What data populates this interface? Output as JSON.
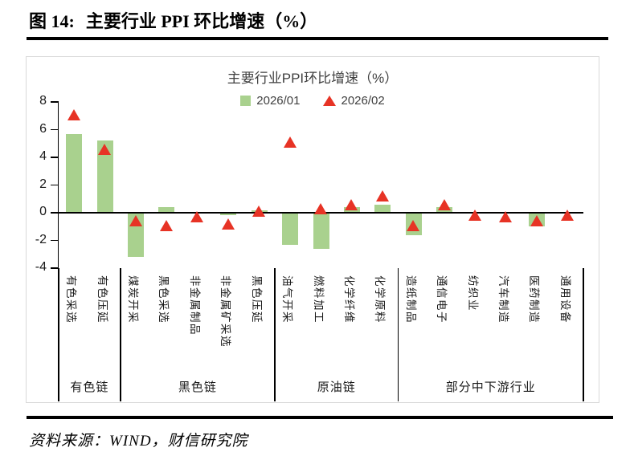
{
  "page": {
    "figure_label": "图 14:",
    "figure_title": "主要行业 PPI 环比增速（%）",
    "source": "资料来源：WIND，财信研究院"
  },
  "chart_data": {
    "type": "bar",
    "title": "主要行业PPI环比增速（%）",
    "legend_position": "top-center",
    "grid": false,
    "ylim": [
      -4,
      8
    ],
    "yticks": [
      8,
      6,
      4,
      2,
      0,
      -2,
      -4
    ],
    "categories": [
      "有色采选",
      "有色压延",
      "煤炭开采",
      "黑色采选",
      "非金属制品",
      "非金属矿采选",
      "黑色压延",
      "油气开采",
      "燃料加工",
      "化学纤维",
      "化学原料",
      "造纸制品",
      "通信电子",
      "纺织业",
      "汽车制造",
      "医药制造",
      "通用设备"
    ],
    "groups": [
      {
        "label": "有色链",
        "span": 2
      },
      {
        "label": "黑色链",
        "span": 5
      },
      {
        "label": "原油链",
        "span": 4
      },
      {
        "label": "部分中下游行业",
        "span": 6
      }
    ],
    "series": [
      {
        "name": "2026/01",
        "type": "bar",
        "color": "#a9d18e",
        "values": [
          5.7,
          5.2,
          -3.2,
          0.4,
          0.0,
          -0.2,
          0.2,
          -2.3,
          -2.6,
          0.4,
          0.6,
          -1.6,
          0.4,
          0.0,
          0.0,
          -1.0,
          0.0
        ]
      },
      {
        "name": "2026/02",
        "type": "triangle-marker",
        "color": "#e73325",
        "values": [
          7.1,
          4.6,
          -0.6,
          -0.9,
          -0.3,
          -0.8,
          0.1,
          5.1,
          0.3,
          0.6,
          1.2,
          -0.9,
          0.6,
          -0.2,
          -0.3,
          -0.6,
          -0.2
        ]
      }
    ]
  }
}
